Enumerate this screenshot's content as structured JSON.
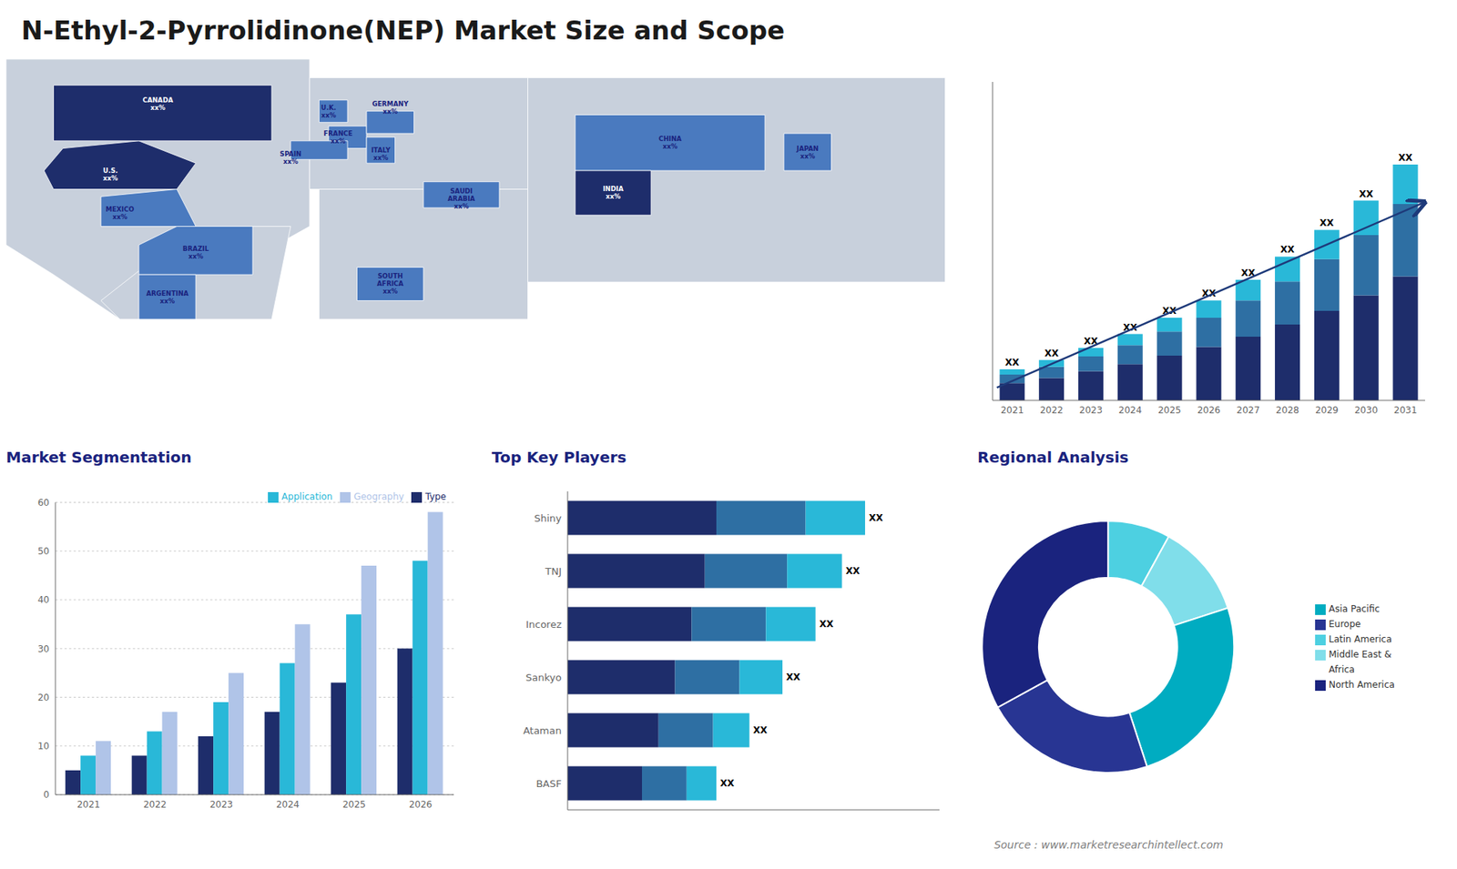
{
  "title": "N-Ethyl-2-Pyrrolidinone(NEP) Market Size and Scope",
  "annotations": [
    "Source : www.marketresearchintellect.com"
  ],
  "chart_data": [
    {
      "type": "map",
      "categories": [
        "U.S.\nxx%",
        "CANADA\nxx%",
        "MEXICO\nxx%",
        "BRAZIL\nxx%",
        "ARGENTINA\nxx%",
        "U.K.\nxx%",
        "FRANCE\nxx%",
        "GERMANY\nxx%",
        "SPAIN\nxx%",
        "ITALY\nxx%",
        "SAUDI\nARABIA\nxx%",
        "SOUTH\nAFRICA\nxx%",
        "CHINA\nxx%",
        "INDIA\nxx%",
        "JAPAN\nxx%"
      ],
      "colors": [
        "#1e2d6b",
        "#1e2d6b",
        "#4a7abf",
        "#4a7abf",
        "#4a7abf",
        "#4a7abf",
        "#4a7abf",
        "#4a7abf",
        "#4a7abf",
        "#4a7abf",
        "#4a7abf",
        "#4a7abf",
        "#4a7abf",
        "#1e2d6b",
        "#4a7abf"
      ]
    },
    {
      "type": "bar",
      "stacked": true,
      "categories": [
        "2021",
        "2022",
        "2023",
        "2024",
        "2025",
        "2026",
        "2027",
        "2028",
        "2029",
        "2030",
        "2031"
      ],
      "series": [
        {
          "color": "#1e2d6b",
          "values": [
            1,
            1.3,
            1.7,
            2.1,
            2.6,
            3.1,
            3.7,
            4.4,
            5.2,
            6.1,
            7.2
          ]
        },
        {
          "color": "#2e6fa3",
          "values": [
            0.5,
            0.65,
            0.85,
            1.1,
            1.4,
            1.7,
            2.1,
            2.5,
            3.0,
            3.5,
            4.2
          ]
        },
        {
          "color": "#29b8d8",
          "values": [
            0.3,
            0.4,
            0.5,
            0.65,
            0.8,
            1.0,
            1.2,
            1.45,
            1.7,
            2.0,
            2.3
          ]
        }
      ],
      "total_labels": [
        "XX",
        "XX",
        "XX",
        "XX",
        "XX",
        "XX",
        "XX",
        "XX",
        "XX",
        "XX",
        "XX"
      ],
      "ylim": [
        0,
        18.495
      ],
      "tick_labels": "x"
    },
    {
      "type": "bar",
      "title": "Market Segmentation",
      "categories": [
        "2021",
        "2022",
        "2023",
        "2024",
        "2025",
        "2026"
      ],
      "series": [
        {
          "name": "Type",
          "color": "#1e2d6b",
          "values": [
            5,
            8,
            12,
            17,
            23,
            30
          ]
        },
        {
          "name": "Application",
          "color": "#29b8d8",
          "values": [
            8,
            13,
            19,
            27,
            37,
            48
          ]
        },
        {
          "name": "Geography",
          "color": "#b0c4e8",
          "values": [
            11,
            17,
            25,
            35,
            47,
            58
          ]
        }
      ],
      "ylim": [
        0,
        60
      ],
      "yticks": [
        0,
        10,
        20,
        30,
        40,
        50,
        60
      ],
      "grid": true,
      "legend": "upper right"
    },
    {
      "type": "bar",
      "title": "Top Key Players",
      "orientation": "horizontal",
      "stacked": true,
      "categories": [
        "Shiny",
        "TNJ",
        "Incorez",
        "Sankyo",
        "Ataman",
        "BASF"
      ],
      "series": [
        {
          "color": "#1e2d6b",
          "values": [
            4.5,
            4.15,
            3.75,
            3.25,
            2.75,
            2.25
          ]
        },
        {
          "color": "#2e6fa3",
          "values": [
            2.7,
            2.49,
            2.25,
            1.95,
            1.65,
            1.35
          ]
        },
        {
          "color": "#29b8d8",
          "values": [
            1.8,
            1.66,
            1.5,
            1.3,
            1.1,
            0.9
          ]
        }
      ],
      "total_labels": [
        "XX",
        "XX",
        "XX",
        "XX",
        "XX",
        "XX"
      ],
      "xlim": [
        0,
        11.25
      ],
      "tick_labels": "y"
    },
    {
      "type": "pie",
      "title": "Regional Analysis",
      "categories": [
        "Latin America",
        "Middle East &\nAfrica",
        "Asia Pacific",
        "Europe",
        "North America"
      ],
      "values": [
        8,
        12,
        25,
        22,
        33
      ],
      "colors": [
        "#4dd0e1",
        "#80deea",
        "#00acc1",
        "#283593",
        "#1a237e"
      ],
      "legend": "right"
    }
  ]
}
